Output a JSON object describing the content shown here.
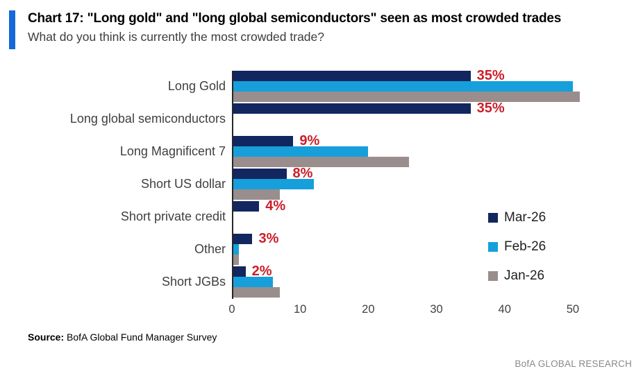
{
  "header": {
    "title": "Chart 17: \"Long gold\" and \"long global semiconductors\" seen as most crowded trades",
    "subtitle": "What do you think is currently the most crowded trade?"
  },
  "chart_data": {
    "type": "bar",
    "orientation": "horizontal",
    "title": "Chart 17: \"Long gold\" and \"long global semiconductors\" seen as most crowded trades",
    "subtitle": "What do you think is currently the most crowded trade?",
    "categories": [
      "Long Gold",
      "Long global semiconductors",
      "Long Magnificent 7",
      "Short US dollar",
      "Short private credit",
      "Other",
      "Short JGBs"
    ],
    "series": [
      {
        "name": "Mar-26",
        "color": "#12265f",
        "values": [
          35,
          35,
          9,
          8,
          4,
          3,
          2
        ]
      },
      {
        "name": "Feb-26",
        "color": "#169fda",
        "values": [
          50,
          0,
          20,
          12,
          0,
          1,
          6
        ]
      },
      {
        "name": "Jan-26",
        "color": "#998e8d",
        "values": [
          51,
          0,
          26,
          7,
          0,
          1,
          7
        ]
      }
    ],
    "data_labels": [
      "35%",
      "35%",
      "9%",
      "8%",
      "4%",
      "3%",
      "2%"
    ],
    "data_label_series": "Mar-26",
    "xlabel": "",
    "ylabel": "",
    "xticks": [
      0,
      10,
      20,
      30,
      40,
      50
    ],
    "xlim": [
      0,
      55
    ],
    "grid": false,
    "legend_position": "right-center"
  },
  "footer": {
    "source_label": "Source:",
    "source_text": "BofA Global Fund Manager Survey",
    "brand": "BofA GLOBAL RESEARCH"
  },
  "colors": {
    "accent_bar": "#1667d9",
    "data_label": "#cc1e28",
    "axis_line": "#262626",
    "tick_text": "#3f3f3f",
    "category_text": "#3f3f3f",
    "brand_text": "#8a8a8a"
  }
}
